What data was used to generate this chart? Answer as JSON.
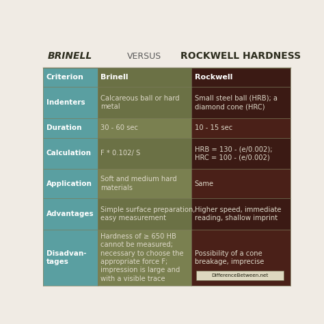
{
  "title_left": "BRINELL",
  "title_vs": "VERSUS",
  "title_right": "ROCKWELL HARDNESS",
  "header_col1": "Criterion",
  "header_col2": "Brinell",
  "header_col3": "Rockwell",
  "rows": [
    {
      "criterion": "Indenters",
      "brinell": "Calcareous ball or hard\nmetal",
      "rockwell": "Small steel ball (HRB); a\ndiamond cone (HRC)"
    },
    {
      "criterion": "Duration",
      "brinell": "30 - 60 sec",
      "rockwell": "10 - 15 sec"
    },
    {
      "criterion": "Calculation",
      "brinell": "F * 0.102/ S",
      "rockwell": "HRB = 130 - (e/0.002);\nHRC = 100 - (e/0.002)"
    },
    {
      "criterion": "Application",
      "brinell": "Soft and medium hard\nmaterials",
      "rockwell": "Same"
    },
    {
      "criterion": "Advantages",
      "brinell": "Simple surface preparation,\neasy measurement",
      "rockwell": "Higher speed, immediate\nreading, shallow imprint"
    },
    {
      "criterion": "Disadvan-\ntages",
      "brinell": "Hardness of ≥ 650 HB\ncannot be measured;\nnecessary to choose the\nappropriate force F;\nimpression is large and\nwith a visible trace",
      "rockwell": "Possibility of a cone\nbreakage, imprecise"
    }
  ],
  "bg_color": "#f0ebe4",
  "col1_header_bg": "#5a9fa1",
  "col1_row_bg": "#5a9fa1",
  "col2_header_bg": "#6b7145",
  "col2_odd_bg": "#6b7145",
  "col2_even_bg": "#7a8050",
  "col3_header_bg": "#3b1a14",
  "col3_odd_bg": "#3b1a14",
  "col3_even_bg": "#4a2018",
  "header_text_color": "#ffffff",
  "cell_text_color": "#ddd8c8",
  "criterion_text_color": "#ffffff",
  "title_text_color": "#2d2d1e",
  "title_vs_color": "#5a5a5a",
  "line_color": "#7a7a5a"
}
